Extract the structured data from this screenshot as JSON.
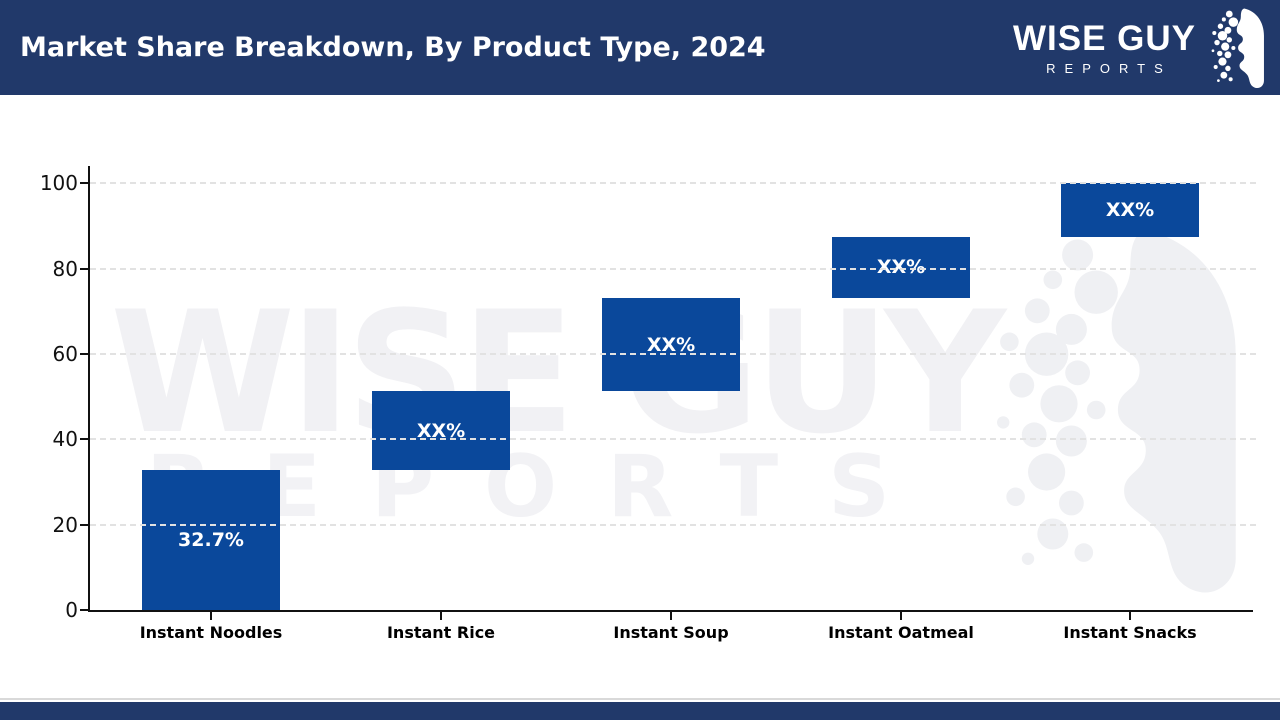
{
  "header": {
    "title": "Market Share Breakdown, By Product Type, 2024",
    "logo": {
      "line1": "WISE GUY",
      "line2": "REPORTS"
    },
    "bg_color": "#21396a"
  },
  "watermark": {
    "line1": "WISE GUY",
    "line2": "REPORTS"
  },
  "footer": {
    "bg_color": "#21396a"
  },
  "chart_data": {
    "type": "bar",
    "subtype": "floating-waterfall",
    "title": "Market Share Breakdown, By Product Type, 2024",
    "categories": [
      "Instant Noodles",
      "Instant Rice",
      "Instant Soup",
      "Instant Oatmeal",
      "Instant Snacks"
    ],
    "segments": [
      {
        "category": "Instant Noodles",
        "start": 0,
        "end": 32.7,
        "value": 32.7,
        "label": "32.7%"
      },
      {
        "category": "Instant Rice",
        "start": 32.7,
        "end": 51.2,
        "value": 18.5,
        "label": "XX%"
      },
      {
        "category": "Instant Soup",
        "start": 51.2,
        "end": 73.0,
        "value": 21.8,
        "label": "XX%"
      },
      {
        "category": "Instant Oatmeal",
        "start": 73.0,
        "end": 87.5,
        "value": 14.5,
        "label": "XX%"
      },
      {
        "category": "Instant Snacks",
        "start": 87.5,
        "end": 100,
        "value": 12.5,
        "label": "XX%"
      }
    ],
    "y_ticks": [
      0,
      20,
      40,
      60,
      80,
      100
    ],
    "y_tick_labels": [
      "0",
      "20",
      "40",
      "60",
      "80",
      "100"
    ],
    "ylim": [
      0,
      104
    ],
    "xlabel": "",
    "ylabel": "",
    "bar_color": "#0a489b",
    "grid": "dashed-horizontal-over-bars",
    "legend": "none"
  }
}
